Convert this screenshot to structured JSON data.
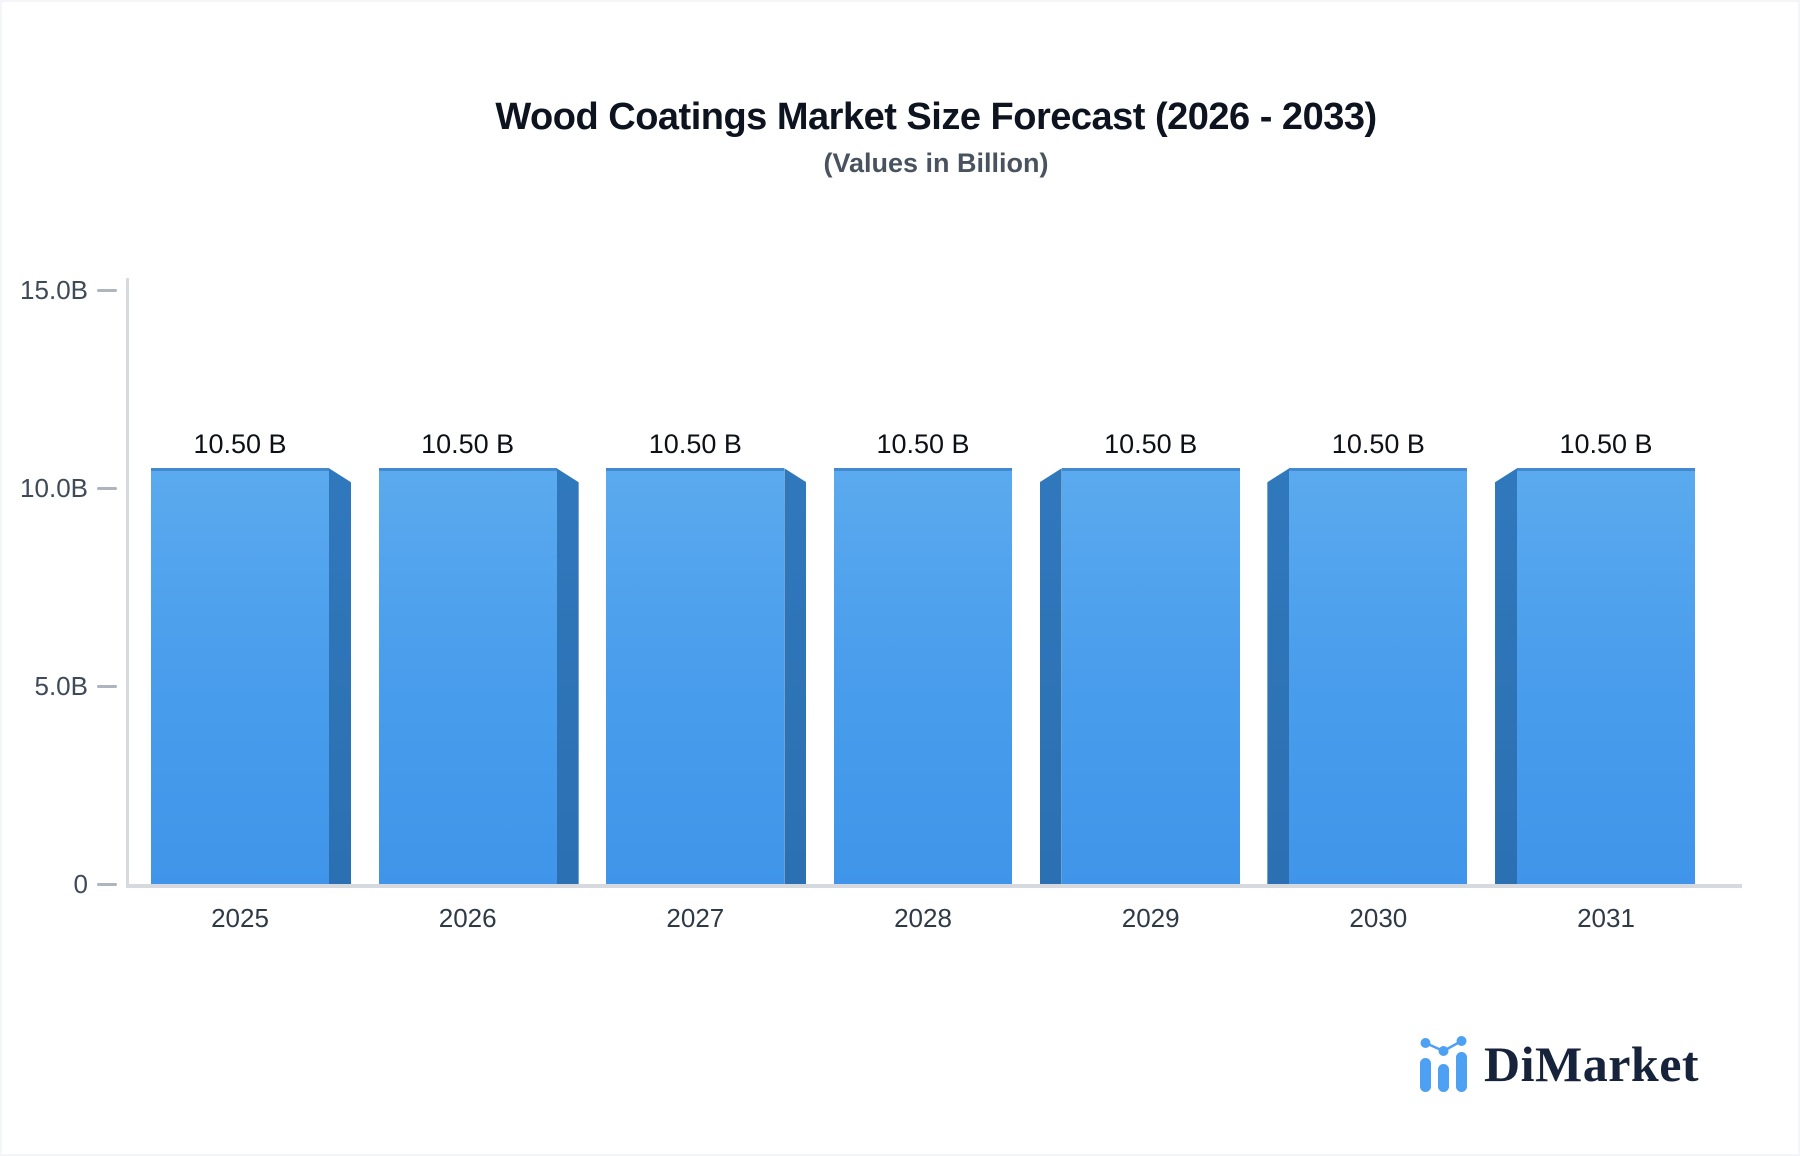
{
  "page": {
    "title": "Wood Coatings Market Size Forecast (2026 - 2033)",
    "subtitle": "(Values in Billion)"
  },
  "chart_data": {
    "type": "bar",
    "title": "Wood Coatings Market Size Forecast (2026 - 2033)",
    "subtitle": "(Values in Billion)",
    "categories": [
      "2025",
      "2026",
      "2027",
      "2028",
      "2029",
      "2030",
      "2031"
    ],
    "values": [
      10.5,
      10.5,
      10.5,
      10.5,
      10.5,
      10.5,
      10.5
    ],
    "value_labels": [
      "10.50 B",
      "10.50 B",
      "10.50 B",
      "10.50 B",
      "10.50 B",
      "10.50 B",
      "10.50 B"
    ],
    "xlabel": "",
    "ylabel": "",
    "ylim": [
      0,
      15
    ],
    "yticks": [
      {
        "value": 15,
        "label": "15.0B"
      },
      {
        "value": 10,
        "label": "10.0B"
      },
      {
        "value": 5,
        "label": "5.0B"
      },
      {
        "value": 0,
        "label": "0"
      }
    ],
    "grid": false,
    "legend": false,
    "style": "pseudo-3d-center-perspective",
    "bar_color": "#4EA0EC",
    "bar_side_color": "#2D74B7"
  },
  "branding": {
    "logo_text": "DiMarket",
    "logo_icon": "mini-bar-chart-icon",
    "logo_text_color": "#16233A",
    "logo_accent_color": "#4DA0F2"
  }
}
